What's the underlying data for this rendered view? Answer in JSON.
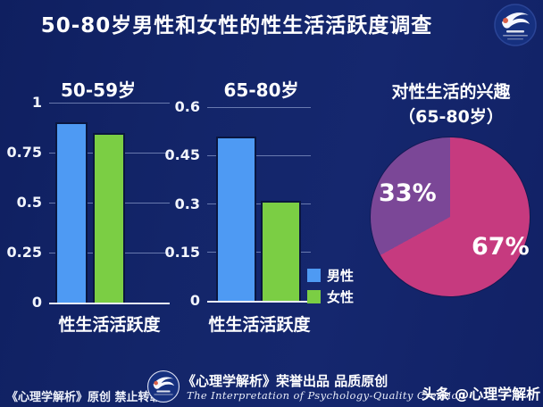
{
  "page": {
    "background": "#13246b"
  },
  "header": {
    "title": "50-80岁男性和女性的性生活活跃度调查"
  },
  "chart_data": [
    {
      "type": "bar",
      "title": "50-59岁",
      "xlabel": "性生活活跃度",
      "categories": [
        "性生活活跃度"
      ],
      "ylim": [
        0,
        1
      ],
      "yticks": [
        0,
        0.25,
        0.5,
        0.75,
        1
      ],
      "grid": true,
      "series": [
        {
          "name": "男性",
          "color": "#4e9af3",
          "values": [
            0.9
          ]
        },
        {
          "name": "女性",
          "color": "#7bce44",
          "values": [
            0.85
          ]
        }
      ]
    },
    {
      "type": "bar",
      "title": "65-80岁",
      "xlabel": "性生活活跃度",
      "categories": [
        "性生活活跃度"
      ],
      "ylim": [
        0,
        0.6
      ],
      "yticks": [
        0,
        0.15,
        0.3,
        0.45,
        0.6
      ],
      "grid": true,
      "series": [
        {
          "name": "男性",
          "color": "#4e9af3",
          "values": [
            0.51
          ]
        },
        {
          "name": "女性",
          "color": "#7bce44",
          "values": [
            0.31
          ]
        }
      ]
    },
    {
      "type": "pie",
      "title": "对性生活的兴趣",
      "subtitle": "（65-80岁）",
      "start_angle": "top-clockwise",
      "slices": [
        {
          "label": "67%",
          "value": 67,
          "color": "#c63a7f"
        },
        {
          "label": "33%",
          "value": 33,
          "color": "#7b4797"
        }
      ]
    }
  ],
  "legend": {
    "items": [
      {
        "label": "男性",
        "color": "#4e9af3"
      },
      {
        "label": "女性",
        "color": "#7bce44"
      }
    ]
  },
  "footer": {
    "left": "《心理学解析》原创 禁止转载",
    "center_main": "《心理学解析》荣誉出品 品质原创",
    "center_sub": "The Interpretation of Psychology-Quality Creation",
    "right_badge": "头条",
    "right_handle": "@心理学解析"
  }
}
